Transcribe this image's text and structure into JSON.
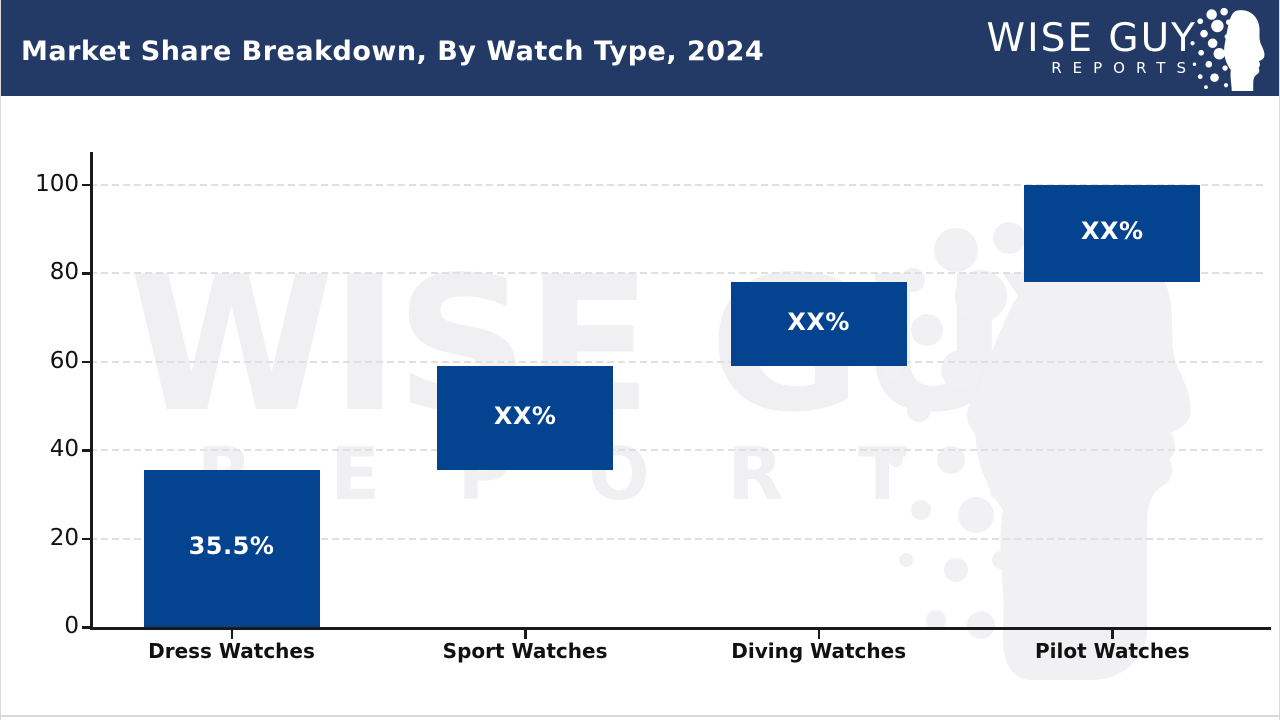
{
  "header": {
    "title": "Market Share Breakdown, By Watch Type, 2024",
    "brand": {
      "line1": "WISE GUY",
      "line2": "REPORTS"
    }
  },
  "watermark": {
    "line1": "WISE GUY",
    "line2": "REPORTS"
  },
  "chart_data": {
    "type": "bar",
    "subtype": "waterfall",
    "title": "Market Share Breakdown, By Watch Type, 2024",
    "categories": [
      "Dress Watches",
      "Sport Watches",
      "Diving Watches",
      "Pilot Watches"
    ],
    "segments": [
      {
        "category": "Dress Watches",
        "start": 0,
        "end": 35.5,
        "label": "35.5%"
      },
      {
        "category": "Sport Watches",
        "start": 35.5,
        "end": 59,
        "label": "XX%"
      },
      {
        "category": "Diving Watches",
        "start": 59,
        "end": 78,
        "label": "XX%"
      },
      {
        "category": "Pilot Watches",
        "start": 78,
        "end": 100,
        "label": "XX%"
      }
    ],
    "yticks": [
      0,
      20,
      40,
      60,
      80,
      100
    ],
    "ylim": [
      0,
      107
    ],
    "xlabel": "",
    "ylabel": "",
    "grid": "horizontal-dashed",
    "legend": "none",
    "bar_color": "#04438F",
    "value_label_color": "#FFFFFF"
  },
  "colors": {
    "header_bg": "#233A66",
    "bar": "#04438F",
    "watermark": "#F0F0F2",
    "grid": "#E0E0E0",
    "axis": "#1A1A1A"
  }
}
